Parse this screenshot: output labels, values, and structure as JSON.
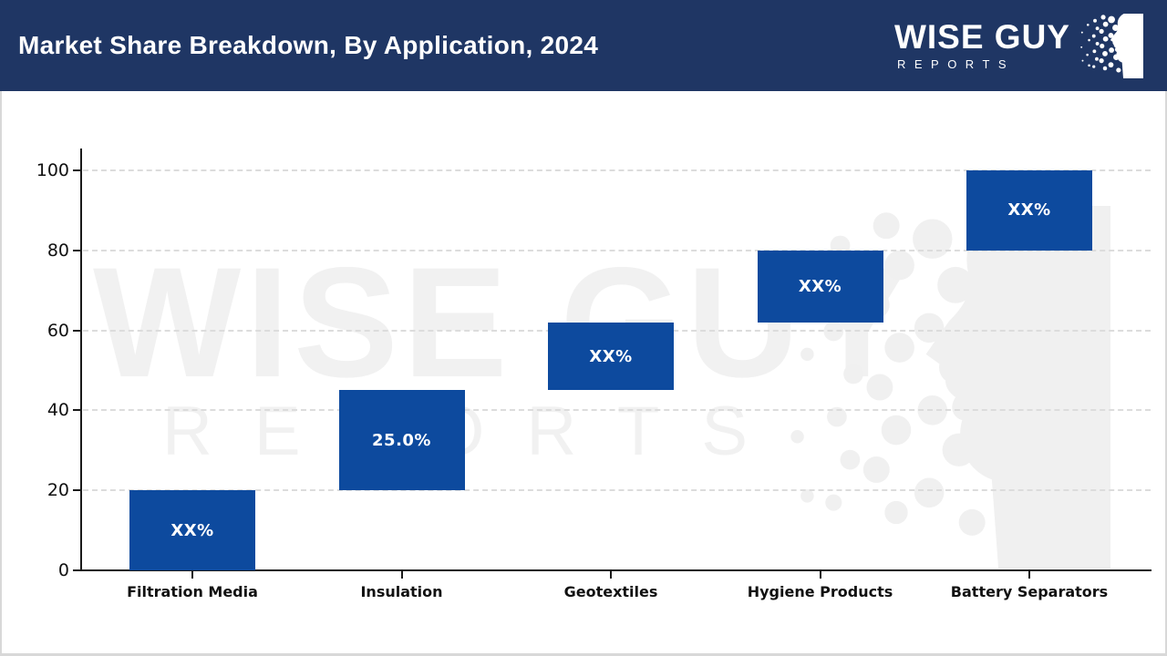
{
  "header": {
    "title": "Market Share Breakdown, By Application, 2024",
    "bg_color": "#1f3664",
    "logo": {
      "line1": "WISE GUY",
      "line2": "REPORTS"
    }
  },
  "watermark": {
    "line1": "WISE GUY",
    "line2": "REPORTS"
  },
  "chart_data": {
    "type": "bar",
    "subtype": "floating-segment-waterfall",
    "title": "Market Share Breakdown, By Application, 2024",
    "categories": [
      "Filtration Media",
      "Insulation",
      "Geotextiles",
      "Hygiene Products",
      "Battery Separators"
    ],
    "series": [
      {
        "name": "Market share segment (%)",
        "ranges": [
          [
            0,
            20
          ],
          [
            20,
            45
          ],
          [
            45,
            62
          ],
          [
            62,
            80
          ],
          [
            80,
            100
          ]
        ],
        "values": [
          20,
          25,
          17,
          18,
          20
        ]
      }
    ],
    "bar_labels": [
      "XX%",
      "25.0%",
      "XX%",
      "XX%",
      "XX%"
    ],
    "ylim": [
      0,
      100
    ],
    "yticks": [
      0,
      20,
      40,
      60,
      80,
      100
    ],
    "xlabel": "",
    "ylabel": "",
    "grid": "horizontal-dashed",
    "legend_position": "none",
    "bar_color": "#0d4a9e",
    "bar_label_color": "#ffffff",
    "axis_color": "#1a1a1a",
    "gridline_color": "#dcdcdc"
  }
}
